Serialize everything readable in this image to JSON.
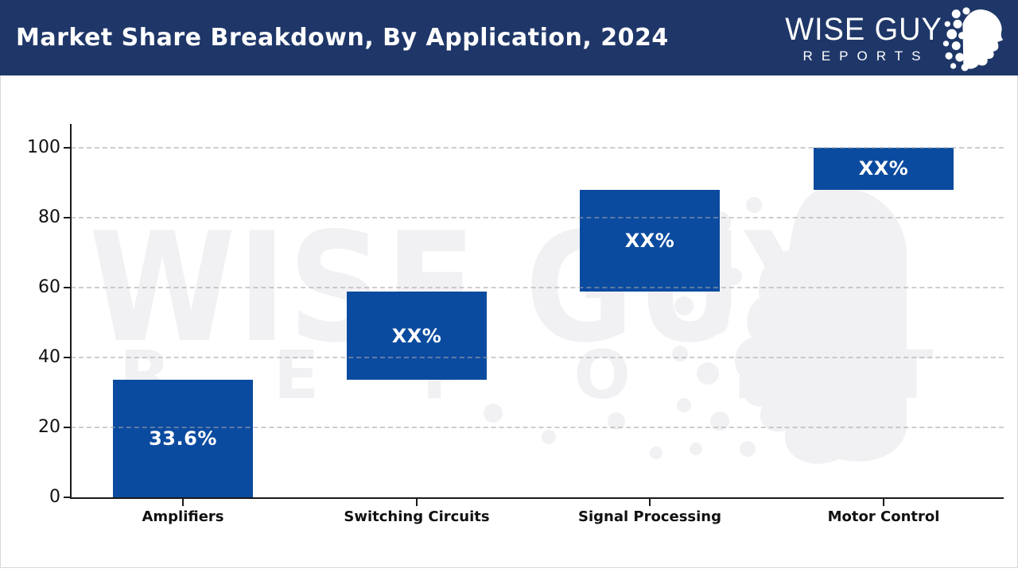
{
  "header": {
    "title": "Market Share Breakdown, By Application, 2024",
    "logo": {
      "line1": "WISE GUY",
      "line2": "REPORTS"
    }
  },
  "watermark": {
    "line1": "WISE GUY",
    "line2": "R E P O R T S"
  },
  "colors": {
    "header_bg": "#1f3768",
    "bar": "#0b4b9f",
    "axis": "#1a1a1a",
    "grid": "#c8c8c8",
    "watermark": "#f1f1f4",
    "frame_border": "#d8d8d8",
    "bar_label_text": "#ffffff"
  },
  "chart_data": {
    "type": "bar",
    "subtype": "waterfall",
    "title": "Market Share Breakdown, By Application, 2024",
    "xlabel": "",
    "ylabel": "",
    "ylim": [
      0,
      100
    ],
    "yticks": [
      0,
      20,
      40,
      60,
      80,
      100
    ],
    "grid": "horizontal-dashed",
    "legend": "none",
    "categories": [
      "Amplifiers",
      "Switching Circuits",
      "Signal Processing",
      "Motor Control"
    ],
    "segments": [
      {
        "label": "Amplifiers",
        "start": 0,
        "end": 33.6,
        "value_label": "33.6%"
      },
      {
        "label": "Switching Circuits",
        "start": 33.6,
        "end": 58.8,
        "value_label": "XX%"
      },
      {
        "label": "Signal Processing",
        "start": 58.8,
        "end": 88.0,
        "value_label": "XX%"
      },
      {
        "label": "Motor Control",
        "start": 88.0,
        "end": 100.0,
        "value_label": "XX%"
      }
    ]
  }
}
